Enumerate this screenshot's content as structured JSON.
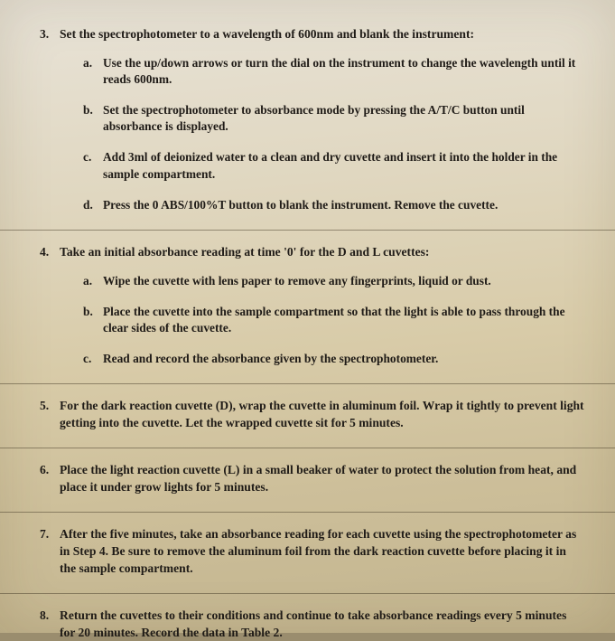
{
  "items": [
    {
      "num": "3.",
      "text": "Set the spectrophotometer to a wavelength of 600nm and blank the instrument:",
      "subs": [
        {
          "letter": "a.",
          "text": "Use the up/down arrows or turn the dial on the instrument to change the wavelength until it reads 600nm."
        },
        {
          "letter": "b.",
          "text": "Set the spectrophotometer to absorbance mode by pressing the A/T/C button until absorbance is displayed."
        },
        {
          "letter": "c.",
          "text": "Add 3ml of deionized water to a clean and dry cuvette and insert it into the holder in the sample compartment."
        },
        {
          "letter": "d.",
          "text": "Press the 0 ABS/100%T button to blank the instrument. Remove the cuvette."
        }
      ],
      "divider": true
    },
    {
      "num": "4.",
      "text": "Take an initial absorbance reading at time '0' for the D and L cuvettes:",
      "subs": [
        {
          "letter": "a.",
          "text": "Wipe the cuvette with lens paper to remove any fingerprints, liquid or dust."
        },
        {
          "letter": "b.",
          "text": "Place the cuvette into the sample compartment so that the light is able to pass through the clear sides of the cuvette."
        },
        {
          "letter": "c.",
          "text": "Read and record the absorbance given by the spectrophotometer."
        }
      ],
      "divider": true
    },
    {
      "num": "5.",
      "text": "For the dark reaction cuvette (D), wrap the cuvette in aluminum foil. Wrap it tightly to prevent light getting into the cuvette. Let the wrapped cuvette sit for 5 minutes.",
      "subs": [],
      "divider": true
    },
    {
      "num": "6.",
      "text": "Place the light reaction cuvette (L) in a small beaker of water to protect the solution from heat, and place it under grow lights for 5 minutes.",
      "subs": [],
      "divider": true
    },
    {
      "num": "7.",
      "text": "After the five minutes, take an absorbance reading for each cuvette using the spectrophotometer as in Step 4. Be sure to remove the aluminum foil from the dark reaction cuvette before placing it in the sample compartment.",
      "subs": [],
      "divider": true
    },
    {
      "num": "8.",
      "text": "Return the cuvettes to their conditions and continue to take absorbance readings every 5 minutes for 20 minutes. Record the data in Table 2.",
      "subs": [],
      "divider": false
    }
  ]
}
